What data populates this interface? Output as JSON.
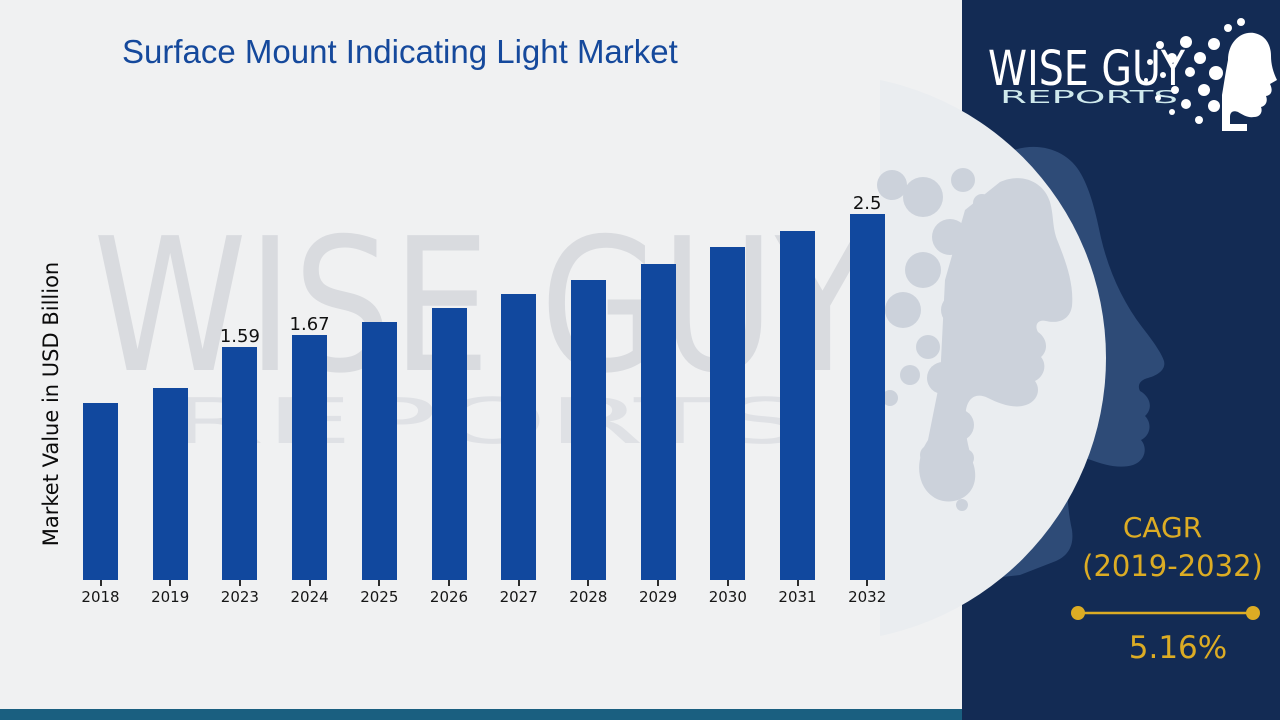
{
  "page": {
    "background": "#f0f1f2"
  },
  "title": {
    "text": "Surface Mount Indicating Light Market",
    "color": "#15499c"
  },
  "watermark": {
    "line1": "WISE GUY",
    "line2": "REPORTS"
  },
  "logo": {
    "line1": "WISE GUY",
    "line2": "REPORTS"
  },
  "cagr": {
    "label": "CAGR",
    "range": "(2019-2032)",
    "value": "5.16%"
  },
  "colors": {
    "bar_blue": "#11489e",
    "navy_panel": "#132b54",
    "face_silhouette": "#2e4b77",
    "light_circle": "#eaedf0",
    "watermark_gray": "#d9dbdf",
    "watermark_dots": "#ccd2db",
    "teal_strip": "#1a5f80",
    "gold": "#dcac24",
    "white": "#ffffff",
    "reports_teal": "#cfe9ec"
  },
  "chart_data": {
    "type": "bar",
    "title": "Surface Mount Indicating Light Market",
    "xlabel": "",
    "ylabel": "Market Value in USD Billion",
    "categories": [
      "2018",
      "2019",
      "2023",
      "2024",
      "2025",
      "2026",
      "2027",
      "2028",
      "2029",
      "2030",
      "2031",
      "2032"
    ],
    "values": [
      1.21,
      1.31,
      1.59,
      1.67,
      1.76,
      1.86,
      1.95,
      2.05,
      2.16,
      2.27,
      2.38,
      2.5
    ],
    "bar_labels": [
      "",
      "",
      "1.59",
      "1.67",
      "",
      "",
      "",
      "",
      "",
      "",
      "",
      "2.5"
    ],
    "unit": "USD Billion",
    "bar_color": "#11489e",
    "ylim": [
      0,
      2.75
    ],
    "grid": false,
    "legend_position": "none"
  }
}
